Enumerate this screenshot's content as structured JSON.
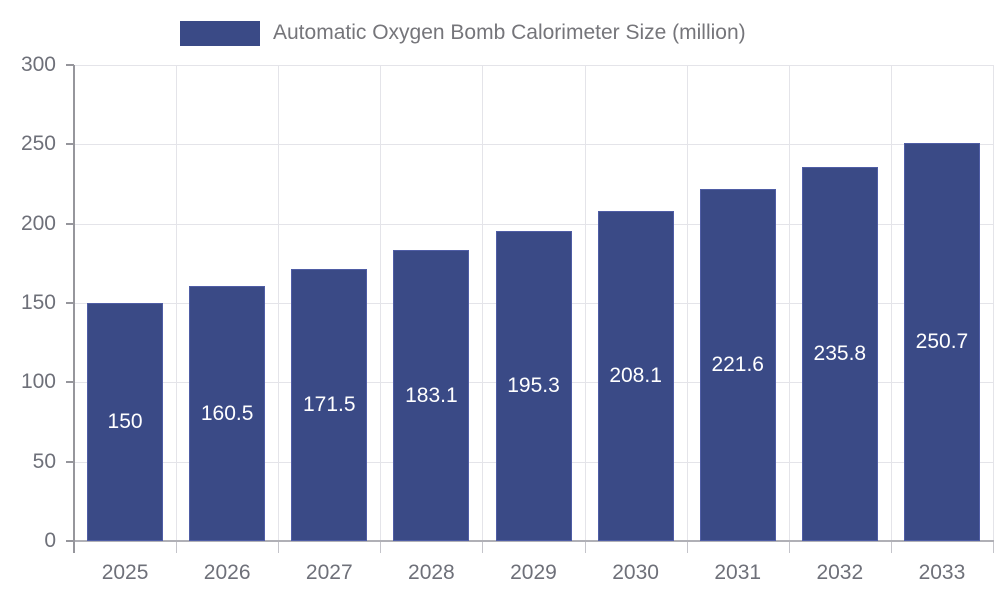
{
  "legend": {
    "label": "Automatic Oxygen Bomb Calorimeter Size (million)"
  },
  "chart_data": {
    "type": "bar",
    "title": "Automatic Oxygen Bomb Calorimeter Size (million)",
    "categories": [
      "2025",
      "2026",
      "2027",
      "2028",
      "2029",
      "2030",
      "2031",
      "2032",
      "2033"
    ],
    "values": [
      150,
      160.5,
      171.5,
      183.1,
      195.3,
      208.1,
      221.6,
      235.8,
      250.7
    ],
    "value_labels": [
      "150",
      "160.5",
      "171.5",
      "183.1",
      "195.3",
      "208.1",
      "221.6",
      "235.8",
      "250.7"
    ],
    "xlabel": "",
    "ylabel": "",
    "ylim": [
      0,
      300
    ],
    "yticks": [
      0,
      50,
      100,
      150,
      200,
      250,
      300
    ],
    "grid": true,
    "legend_position": "top-center",
    "colors": {
      "bar_fill": "#3A4A86",
      "bar_border": "#4F5DA5",
      "value_label": "#FFFFFF",
      "grid_line": "#E4E4E9",
      "axis_line_x": "#B0B0B6",
      "axis_line_y": "#96969C",
      "tick_color": "#C4C4CA",
      "axis_label": "#6E7079",
      "legend_text": "#75757A"
    }
  }
}
